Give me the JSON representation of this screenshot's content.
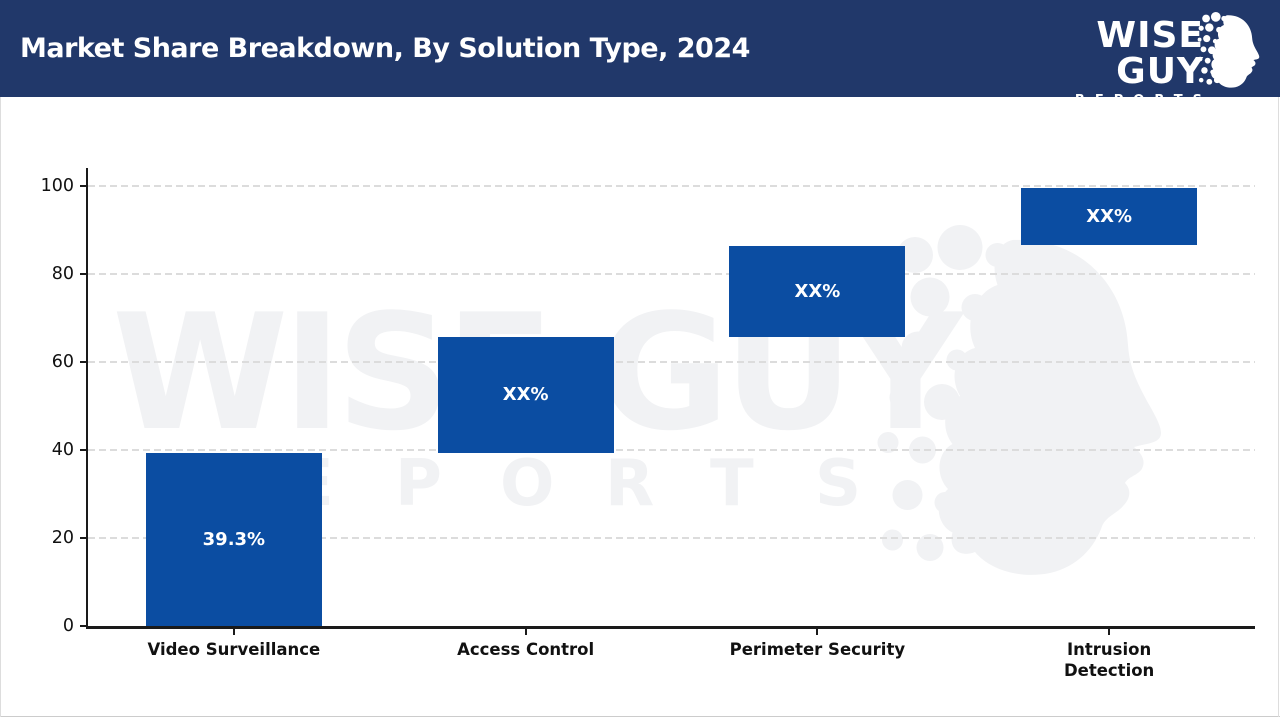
{
  "header": {
    "title": "Market Share Breakdown, By Solution Type, 2024",
    "background_color": "#21386a",
    "logo": {
      "line1": "WISE GUY",
      "line2": "REPORTS"
    }
  },
  "watermark": {
    "line1": "WISE GUY",
    "line2": "REPORTS"
  },
  "chart_data": {
    "type": "bar",
    "subtype": "floating-waterfall",
    "title": "Market Share Breakdown, By Solution Type, 2024",
    "categories": [
      "Video Surveillance",
      "Access Control",
      "Perimeter Security",
      "Intrusion\nDetection"
    ],
    "bars": [
      {
        "category": "Video Surveillance",
        "start": 0,
        "end": 39.3,
        "label": "39.3%"
      },
      {
        "category": "Access Control",
        "start": 39.3,
        "end": 65.7,
        "label": "XX%"
      },
      {
        "category": "Perimeter Security",
        "start": 65.7,
        "end": 86.4,
        "label": "XX%"
      },
      {
        "category": "Intrusion Detection",
        "start": 86.6,
        "end": 99.5,
        "label": "XX%"
      }
    ],
    "ylim": [
      0,
      100
    ],
    "yticks": [
      0,
      20,
      40,
      60,
      80,
      100
    ],
    "grid": "horizontal-dashed",
    "legend": "none",
    "bar_color": "#0b4da2",
    "value_label_color": "#ffffff",
    "axis_color": "#1a1a1a"
  }
}
